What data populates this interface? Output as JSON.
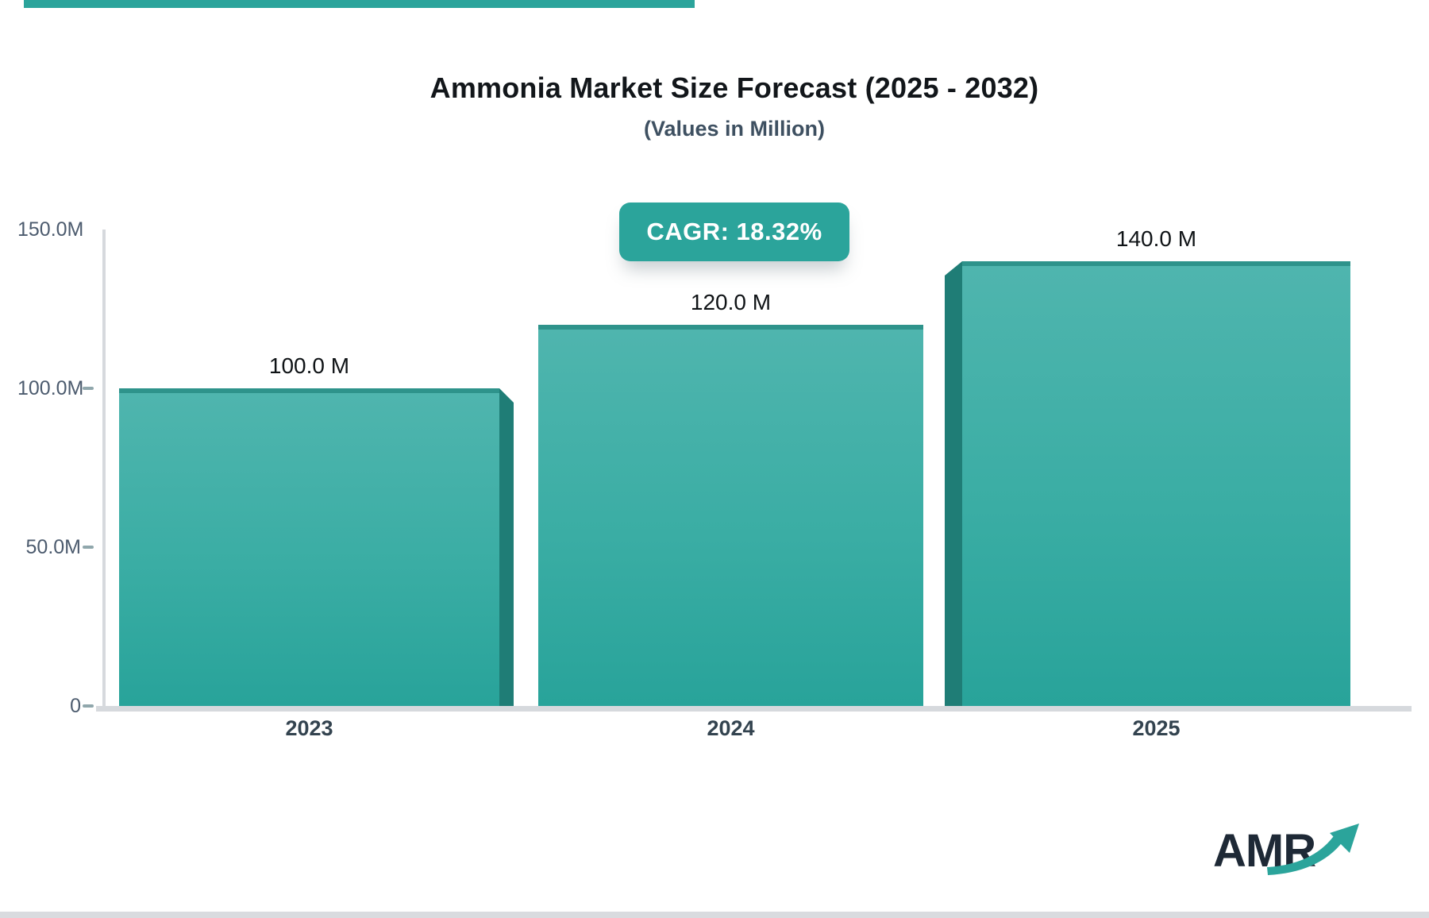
{
  "chart_data": {
    "type": "bar",
    "title": "Ammonia Market Size Forecast (2025 - 2032)",
    "subtitle": "(Values in Million)",
    "cagr_label": "CAGR: 18.32%",
    "cagr_percent": 18.32,
    "unit": "Million",
    "categories": [
      "2023",
      "2024",
      "2025"
    ],
    "values": [
      100.0,
      120.0,
      140.0
    ],
    "value_labels": [
      "100.0 M",
      "120.0 M",
      "140.0 M"
    ],
    "ylim": [
      0,
      150
    ],
    "y_tick_labels": [
      "150.0M",
      "100.0M",
      "50.0M",
      "0"
    ],
    "y_tick_values": [
      150,
      100,
      50,
      0
    ],
    "grid": false,
    "legend": false,
    "bar_style": "3d-extruded",
    "bar_extrusion_sides": [
      "right",
      "none",
      "left"
    ]
  },
  "logo": {
    "text": "AMR",
    "arrow_icon": "growth-arrow-icon"
  },
  "colors": {
    "accent_teal": "#2ba49b",
    "bar_gradient_top": "#4fb5ae",
    "bar_gradient_bottom": "#28a39a",
    "bar_top_edge": "#2e938b",
    "bar_side_flap": "#1f7d76",
    "axis_line": "#d6d9dd",
    "axis_label": "#4c5b6e",
    "category_label": "#33434f",
    "title_text": "#12161a",
    "subtitle_text": "#3e5061",
    "logo_navy": "#1e2936"
  }
}
